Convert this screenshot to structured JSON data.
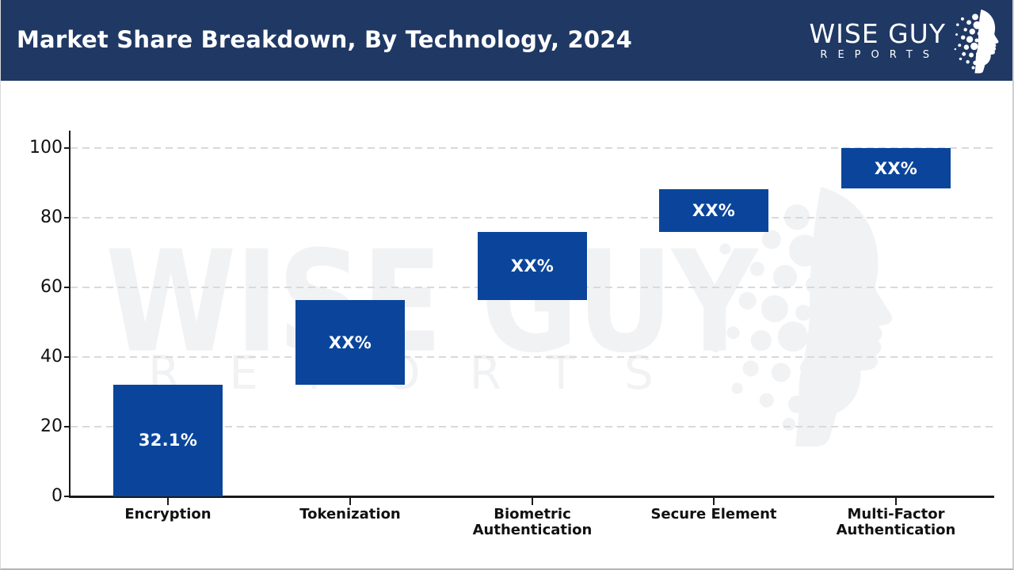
{
  "header": {
    "title": "Market Share Breakdown, By Technology, 2024",
    "logo": {
      "line1": "WISE GUY",
      "line2": "REPORTS"
    }
  },
  "watermark": {
    "line1": "WISE GUY",
    "line2": "REPORTS"
  },
  "chart_data": {
    "type": "bar",
    "variant": "waterfall",
    "title": "Market Share Breakdown, By Technology, 2024",
    "categories": [
      "Encryption",
      "Tokenization",
      "Biometric Authentication",
      "Secure Element",
      "Multi-Factor Authentication"
    ],
    "category_label_lines": [
      [
        "Encryption"
      ],
      [
        "Tokenization"
      ],
      [
        "Biometric",
        "Authentication"
      ],
      [
        "Secure Element"
      ],
      [
        "Multi-Factor",
        "Authentication"
      ]
    ],
    "segments": [
      {
        "category": "Encryption",
        "start": 0,
        "end": 32.1,
        "label": "32.1%"
      },
      {
        "category": "Tokenization",
        "start": 32.1,
        "end": 56.3,
        "label": "XX%"
      },
      {
        "category": "Biometric Authentication",
        "start": 56.4,
        "end": 75.8,
        "label": "XX%"
      },
      {
        "category": "Secure Element",
        "start": 75.9,
        "end": 88.2,
        "label": "XX%"
      },
      {
        "category": "Multi-Factor Authentication",
        "start": 88.4,
        "end": 100,
        "label": "XX%"
      }
    ],
    "value_labels": [
      "32.1%",
      "XX%",
      "XX%",
      "XX%",
      "XX%"
    ],
    "yticks": [
      0,
      20,
      40,
      60,
      80,
      100
    ],
    "ylim": [
      0,
      105
    ],
    "xlabel": "",
    "ylabel": "",
    "grid": {
      "horizontal": true,
      "style": "dashed"
    },
    "legend": null
  },
  "colors": {
    "header_bg": "#1f3864",
    "bar": "#0a459b",
    "watermark": "#f1f2f4",
    "gridline": "#d9d9d9",
    "axis": "#1a1a1a",
    "title_text": "#ffffff",
    "bar_label_text": "#ffffff"
  }
}
